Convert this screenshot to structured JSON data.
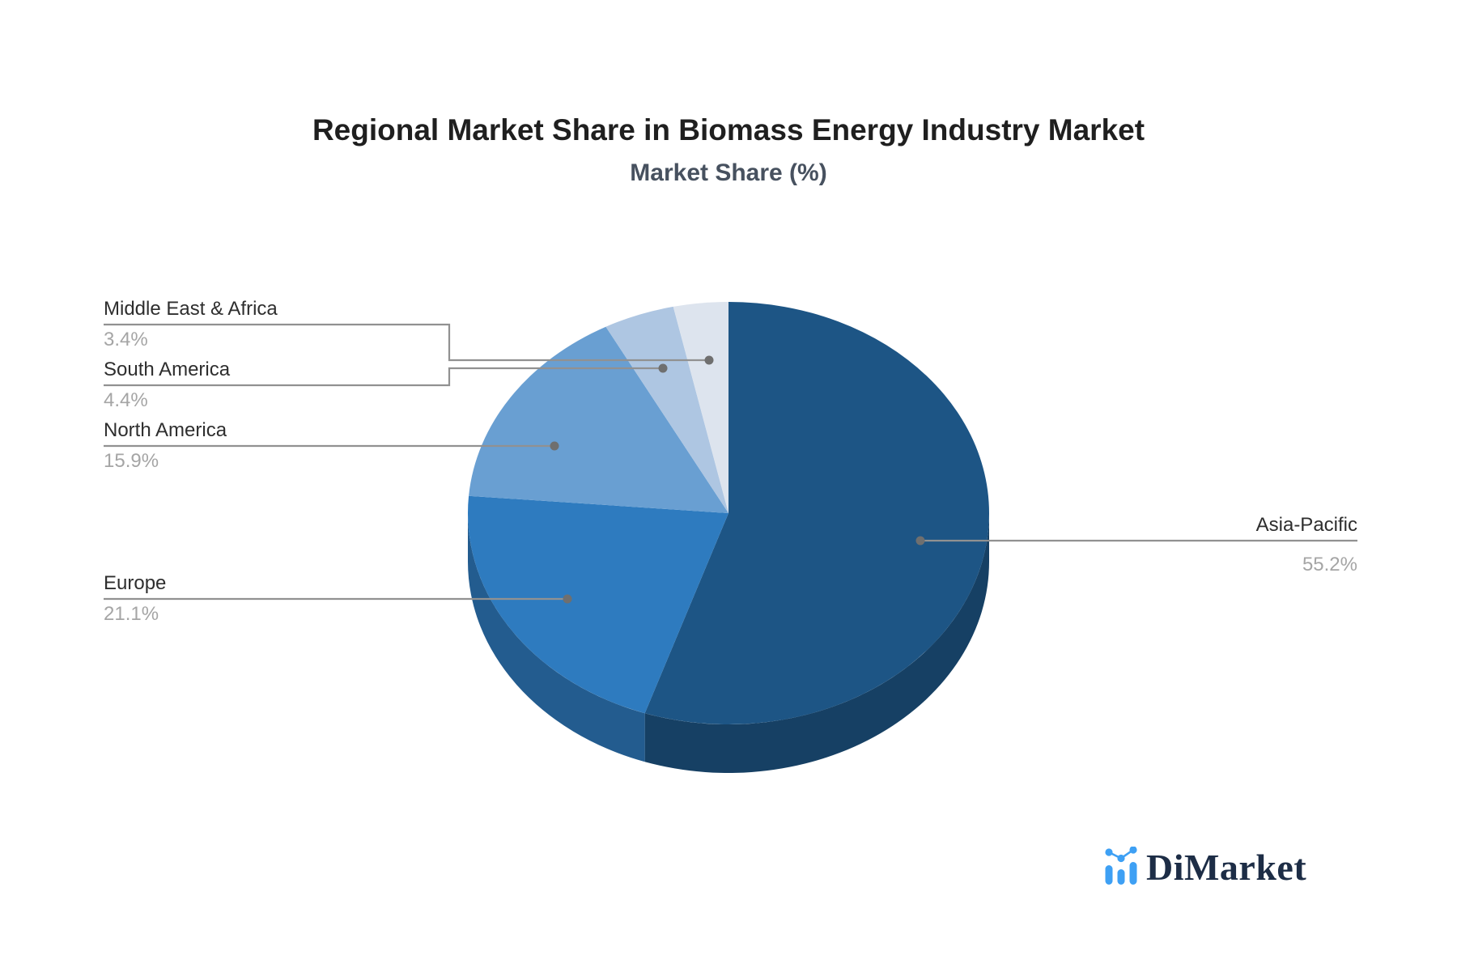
{
  "title": "Regional Market Share in Biomass Energy Industry Market",
  "subtitle": "Market Share (%)",
  "brand": {
    "name": "DiMarket",
    "icon": "bar-chart-trend-icon",
    "icon_color": "#3ea0f4",
    "text_color": "#1d2d46"
  },
  "chart_data": {
    "type": "pie",
    "style": "3d",
    "title": "Regional Market Share in Biomass Energy Industry Market",
    "subtitle": "Market Share (%)",
    "unit": "%",
    "start_angle": "12-o-clock",
    "direction": "clockwise",
    "legend": "none",
    "labeling": "leader-lines",
    "leader_line_color": "#919191",
    "leader_dot_color": "#6f6f6f",
    "slices": [
      {
        "name": "Asia-Pacific",
        "value": 55.2,
        "label": "55.2%",
        "color": "#1d5585"
      },
      {
        "name": "Europe",
        "value": 21.1,
        "label": "21.1%",
        "color": "#2e7bbf"
      },
      {
        "name": "North America",
        "value": 15.9,
        "label": "15.9%",
        "color": "#699fd2"
      },
      {
        "name": "South America",
        "value": 4.4,
        "label": "4.4%",
        "color": "#aec6e2"
      },
      {
        "name": "Middle East & Africa",
        "value": 3.4,
        "label": "3.4%",
        "color": "#dde4ee"
      }
    ]
  }
}
